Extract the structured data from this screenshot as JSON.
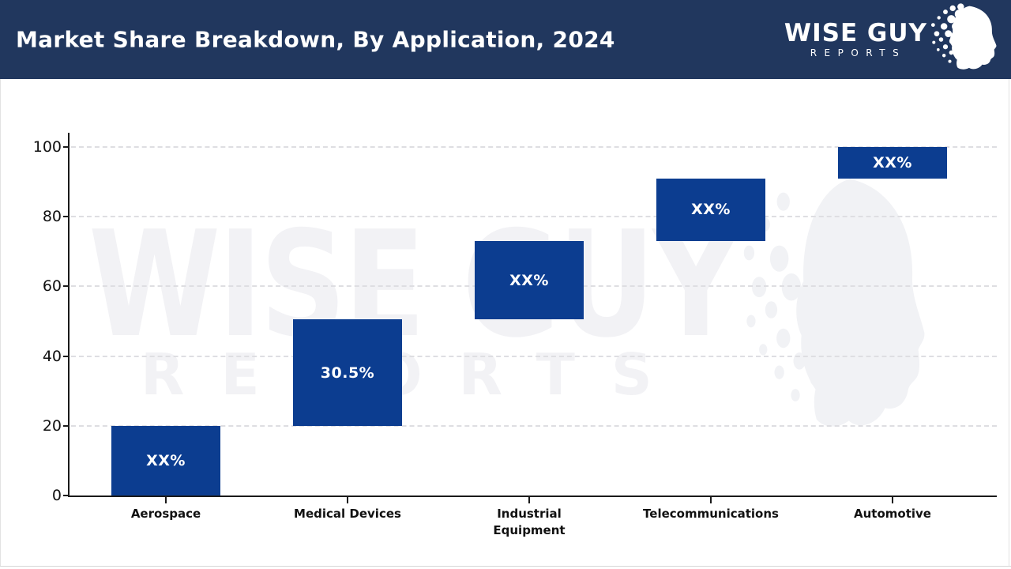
{
  "header": {
    "title": "Market Share Breakdown, By Application, 2024",
    "logo": {
      "line1": "WISE GUY",
      "line2": "REPORTS"
    }
  },
  "watermark": {
    "line1": "WISE GUY",
    "line2": "REPORTS"
  },
  "chart_data": {
    "type": "bar",
    "subtype": "floating-waterfall",
    "title": "Market Share Breakdown, By Application, 2024",
    "categories": [
      "Aerospace",
      "Medical Devices",
      "Industrial Equipment",
      "Telecommunications",
      "Automotive"
    ],
    "bars": [
      {
        "category": "Aerospace",
        "start": 0,
        "end": 20,
        "label": "XX%"
      },
      {
        "category": "Medical Devices",
        "start": 20,
        "end": 50.5,
        "label": "30.5%"
      },
      {
        "category": "Industrial Equipment",
        "start": 50.5,
        "end": 73,
        "label": "XX%"
      },
      {
        "category": "Telecommunications",
        "start": 73,
        "end": 91,
        "label": "XX%"
      },
      {
        "category": "Automotive",
        "start": 91,
        "end": 100,
        "label": "XX%"
      }
    ],
    "y_ticks": [
      0,
      20,
      40,
      60,
      80,
      100
    ],
    "ylim": [
      0,
      103.5
    ],
    "xlabel": "",
    "ylabel": "",
    "grid": "horizontal-dashed",
    "legend_position": "none",
    "bar_color": "#0c3d90",
    "bar_label_color": "#ffffff"
  },
  "colors": {
    "header_bg": "#21375e",
    "bar_fill": "#0c3d90",
    "axis": "#1a1a1a",
    "gridline": "#dedee2",
    "watermark": "#f2f2f5",
    "page_bg": "#ffffff"
  }
}
